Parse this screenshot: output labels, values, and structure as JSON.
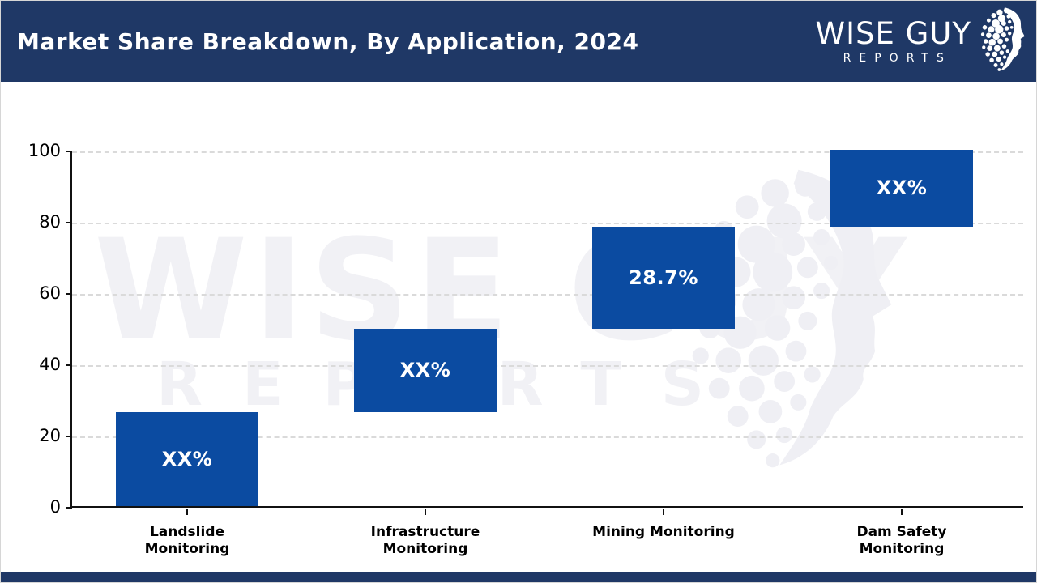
{
  "header": {
    "title": "Market Share Breakdown, By Application, 2024",
    "logo": {
      "line1": "WISE GUY",
      "line2": "REPORTS"
    }
  },
  "watermark": {
    "line1": "WISE GUY",
    "line2": "REPORTS"
  },
  "colors": {
    "header_bg": "#1f3866",
    "footer_bg": "#1f3866",
    "bar": "#0b4ba1",
    "bar_label": "#ffffff",
    "grid": "#dadada",
    "axis": "#111111",
    "watermark": "#f1f1f5"
  },
  "chart_data": {
    "type": "bar",
    "subtype": "waterfall",
    "title": "Market Share Breakdown, By Application, 2024",
    "categories": [
      "Landslide\nMonitoring",
      "Infrastructure\nMonitoring",
      "Mining Monitoring",
      "Dam Safety\nMonitoring"
    ],
    "series": [
      {
        "name": "Market Share (%)",
        "segments": [
          {
            "category": "Landslide Monitoring",
            "start": 0,
            "end": 26.4,
            "label": "XX%"
          },
          {
            "category": "Infrastructure Monitoring",
            "start": 26.4,
            "end": 49.8,
            "label": "XX%"
          },
          {
            "category": "Mining Monitoring",
            "start": 49.8,
            "end": 78.5,
            "label": "28.7%"
          },
          {
            "category": "Dam Safety Monitoring",
            "start": 78.5,
            "end": 100,
            "label": "XX%"
          }
        ]
      }
    ],
    "ylim": [
      0,
      100
    ],
    "yticks": [
      0,
      20,
      40,
      60,
      80,
      100
    ],
    "xlabel": "",
    "ylabel": "",
    "grid": "horizontal-dashed",
    "legend": "none"
  }
}
